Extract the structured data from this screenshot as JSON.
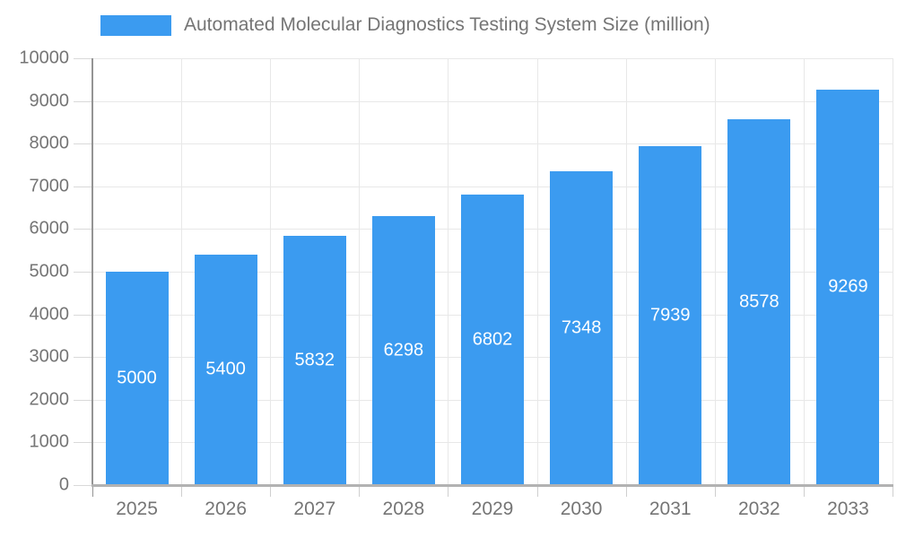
{
  "chart_data": {
    "type": "bar",
    "title": "Automated Molecular Diagnostics Testing System Size (million)",
    "legend_entries": [
      "Automated Molecular Diagnostics Testing System Size (million)"
    ],
    "legend_position": "top",
    "categories": [
      "2025",
      "2026",
      "2027",
      "2028",
      "2029",
      "2030",
      "2031",
      "2032",
      "2033"
    ],
    "values": [
      5000,
      5400,
      5832,
      6298,
      6802,
      7348,
      7939,
      8578,
      9269
    ],
    "bar_value_labels": [
      "5000",
      "5400",
      "5832",
      "6298",
      "6802",
      "7348",
      "7939",
      "8578",
      "9269"
    ],
    "xlabel": "",
    "ylabel": "",
    "ylim": [
      0,
      10000
    ],
    "yticks": [
      0,
      1000,
      2000,
      3000,
      4000,
      5000,
      6000,
      7000,
      8000,
      9000,
      10000
    ],
    "grid": true,
    "colors": {
      "bar": "#3b9bf0",
      "bar_value_label": "#ffffff",
      "axis_label": "#757575",
      "legend_label": "#757575",
      "gridline": "#e8e8e8",
      "background": "#ffffff"
    }
  }
}
